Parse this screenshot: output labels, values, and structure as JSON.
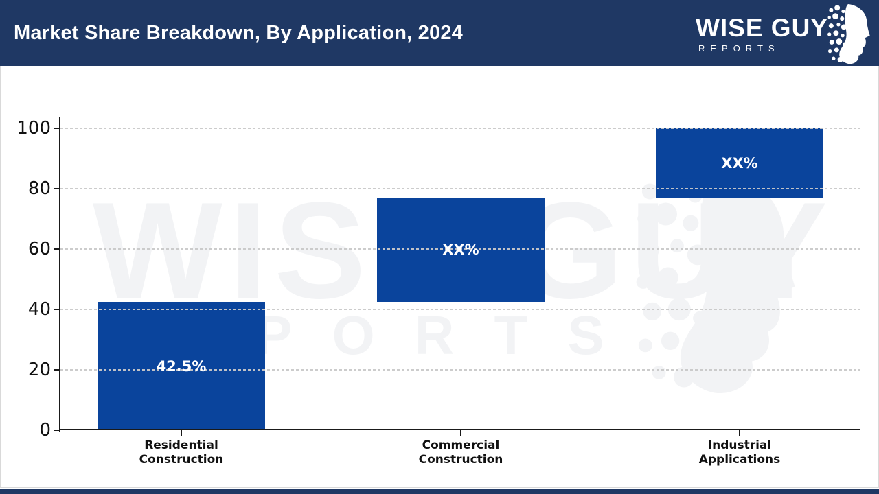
{
  "header": {
    "title": "Market Share Breakdown, By Application, 2024",
    "logo": {
      "line1": "WISE GUY",
      "line2": "REPORTS"
    }
  },
  "watermark": {
    "line1": "WISE GUY",
    "line2": "REPORTS"
  },
  "chart_data": {
    "type": "bar",
    "subtype": "stacked-waterfall",
    "title": "Market Share Breakdown, By Application, 2024",
    "xlabel": "",
    "ylabel": "",
    "categories": [
      "Residential Construction",
      "Commercial Construction",
      "Industrial Applications"
    ],
    "category_lines": [
      [
        "Residential",
        "Construction"
      ],
      [
        "Commercial",
        "Construction"
      ],
      [
        "Industrial",
        "Applications"
      ]
    ],
    "bars": [
      {
        "category": "Residential Construction",
        "label": "42.5%",
        "start": 0,
        "end": 42.5
      },
      {
        "category": "Commercial Construction",
        "label": "XX%",
        "start": 42.5,
        "end": 77
      },
      {
        "category": "Industrial Applications",
        "label": "XX%",
        "start": 77,
        "end": 100
      }
    ],
    "yticks": [
      0,
      20,
      40,
      60,
      80,
      100
    ],
    "ylim": [
      0,
      103
    ],
    "grid": "horizontal-dashed",
    "legend": "none"
  },
  "colors": {
    "header_bg": "#1f3864",
    "footer_bg": "#1f3864",
    "bar_fill": "#0a449c",
    "bar_label": "#ffffff",
    "axis": "#1a1a1a",
    "gridline": "#c9c9c9",
    "card_border": "#d9d9d9",
    "watermark": "#f2f3f5"
  }
}
